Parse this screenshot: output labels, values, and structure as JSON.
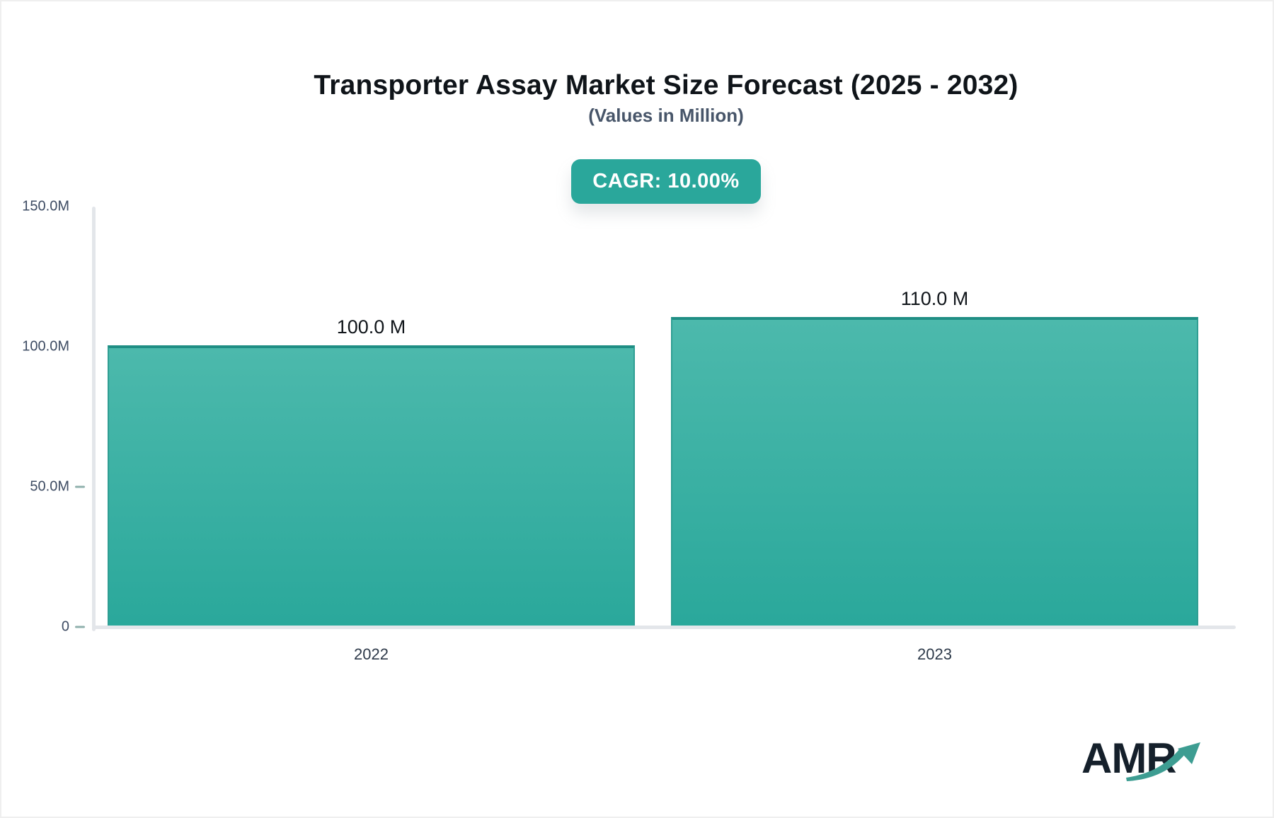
{
  "chart_data": {
    "type": "bar",
    "title": "Transporter Assay Market Size Forecast (2025 - 2032)",
    "subtitle": "(Values in Million)",
    "badge_label": "CAGR: 10.00%",
    "categories": [
      "2022",
      "2023"
    ],
    "values": [
      100,
      110
    ],
    "value_labels": [
      "100.0 M",
      "110.0 M"
    ],
    "unit": "M",
    "ylim": [
      0,
      150
    ],
    "yticks": [
      {
        "value": 150,
        "label": "150.0M",
        "dash": false
      },
      {
        "value": 100,
        "label": "100.0M",
        "dash": false
      },
      {
        "value": 50,
        "label": "50.0M",
        "dash": true
      },
      {
        "value": 0,
        "label": "0",
        "dash": true
      }
    ],
    "grid": false,
    "legend": false
  },
  "logo": {
    "text": "AMR"
  },
  "colors": {
    "title": "#0f1419",
    "subtitle": "#475569",
    "badge_bg": "#2aa79b",
    "badge_text": "#ffffff",
    "bar_fill_top": "#4cb9ac",
    "bar_fill_bottom": "#2aa89b",
    "bar_border_top": "#1f8e84",
    "bar_border_side": "#2f9e93",
    "axis_line": "#e3e6ea",
    "tick": "#8fb0ac",
    "ytick_label": "#3e4c63",
    "xtick_label": "#2e3a4a",
    "value_label": "#10151a",
    "logo_text": "#15202b",
    "logo_arrow": "#3d9d92"
  }
}
